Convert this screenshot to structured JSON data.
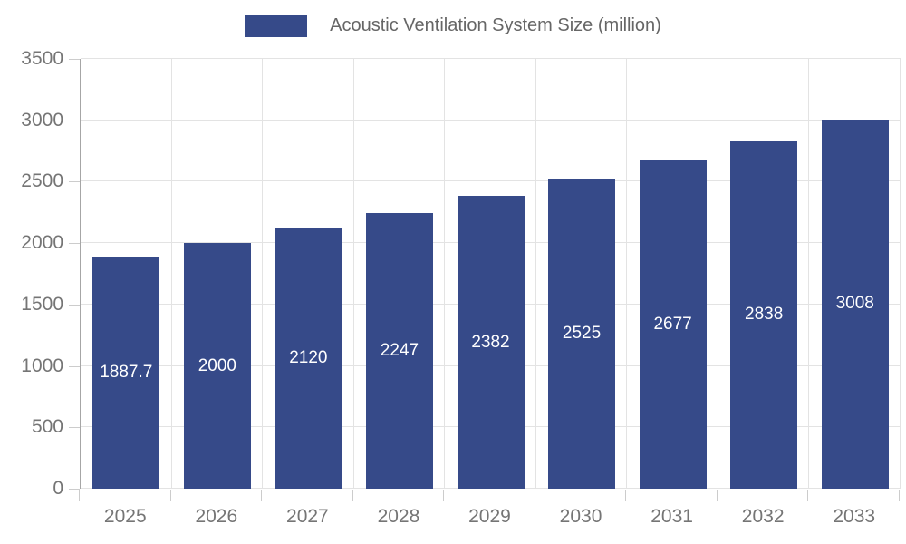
{
  "legend": {
    "label": "Acoustic Ventilation System Size (million)"
  },
  "colors": {
    "bar": "#364A89",
    "bar_label": "#FFFFFF",
    "axis_text": "#757575",
    "legend_text": "#666666",
    "grid_line": "#E3E3E3",
    "axis_line": "#A6A6A6",
    "tick_line": "#CCCCCC",
    "background": "#FFFFFF"
  },
  "chart_data": {
    "type": "bar",
    "title": "Acoustic Ventilation System Size (million)",
    "categories": [
      "2025",
      "2026",
      "2027",
      "2028",
      "2029",
      "2030",
      "2031",
      "2032",
      "2033"
    ],
    "series": [
      {
        "name": "Acoustic Ventilation System Size (million)",
        "values": [
          1887.7,
          2000,
          2120,
          2247,
          2382,
          2525,
          2677,
          2838,
          3008
        ]
      }
    ],
    "value_labels": [
      "1887.7",
      "2000",
      "2120",
      "2247",
      "2382",
      "2525",
      "2677",
      "2838",
      "3008"
    ],
    "xlabel": "",
    "ylabel": "",
    "ylim": [
      0,
      3500
    ],
    "ytick_step": 500,
    "yticks": [
      "0",
      "500",
      "1000",
      "1500",
      "2000",
      "2500",
      "3000",
      "3500"
    ],
    "grid": true,
    "legend_position": "top",
    "value_label_position": "inside-center"
  }
}
